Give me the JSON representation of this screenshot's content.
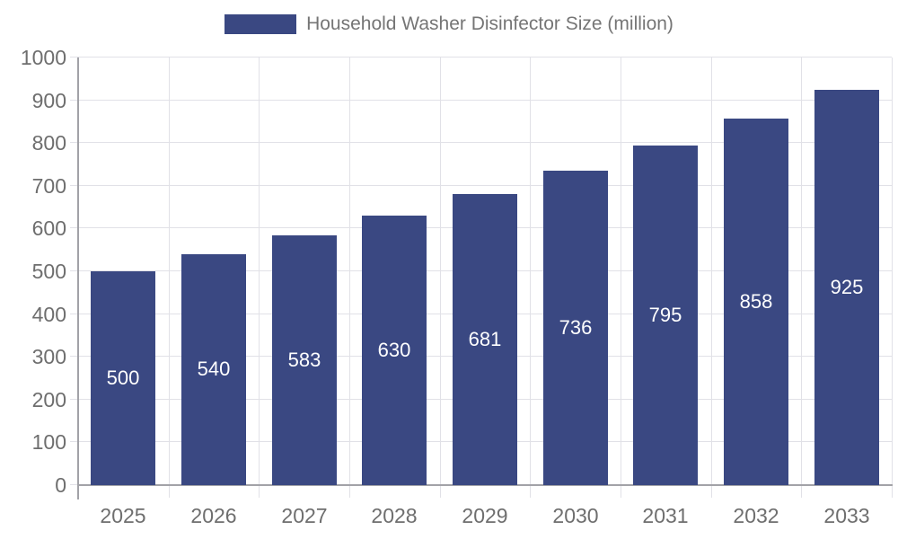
{
  "chart_data": {
    "type": "bar",
    "title": "Household Washer Disinfector Size (million)",
    "legend": [
      "Household Washer Disinfector Size (million)"
    ],
    "legend_position": "top-center",
    "categories": [
      "2025",
      "2026",
      "2027",
      "2028",
      "2029",
      "2030",
      "2031",
      "2032",
      "2033"
    ],
    "values": [
      500,
      540,
      583,
      630,
      681,
      736,
      795,
      858,
      925
    ],
    "xlabel": "",
    "ylabel": "",
    "ylim": [
      0,
      1000
    ],
    "yticks": [
      0,
      100,
      200,
      300,
      400,
      500,
      600,
      700,
      800,
      900,
      1000
    ],
    "grid": true,
    "value_labels": "inside-center",
    "style": {
      "bar_color": "#3A4882",
      "value_label_color": "#FFFFFF",
      "grid_color": "#E1E1E7",
      "axis_color": "#A2A2A7",
      "tick_label_color": "#6E6E6E",
      "legend_text_color": "#757575",
      "background": "#FFFFFF"
    }
  }
}
